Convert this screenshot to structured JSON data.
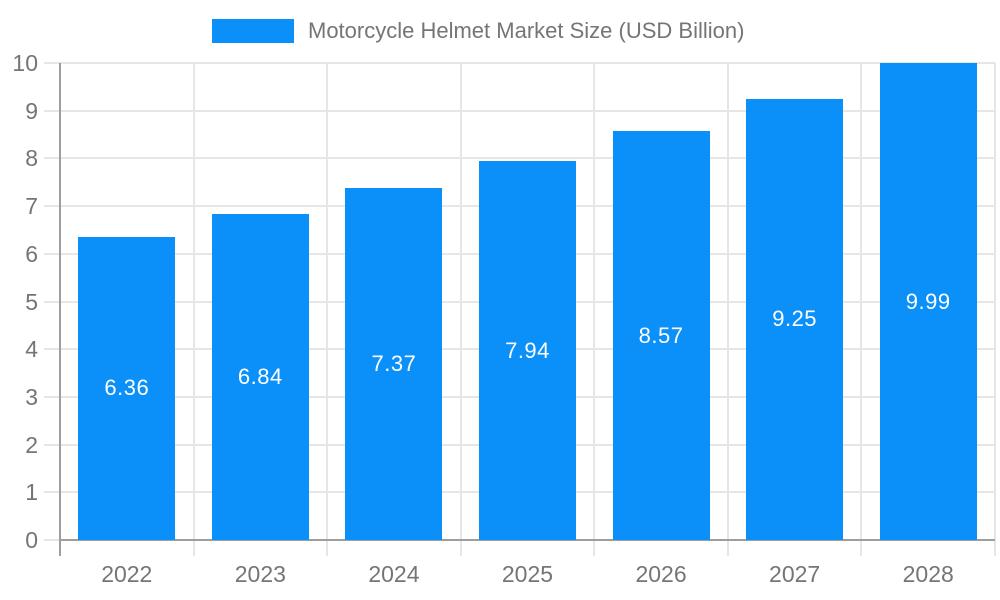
{
  "chart_data": {
    "type": "bar",
    "title": "Motorcycle Helmet Market Size (USD Billion)",
    "categories": [
      "2022",
      "2023",
      "2024",
      "2025",
      "2026",
      "2027",
      "2028"
    ],
    "values": [
      6.36,
      6.84,
      7.37,
      7.94,
      8.57,
      9.25,
      9.99
    ],
    "value_labels": [
      "6.36",
      "6.84",
      "7.37",
      "7.94",
      "8.57",
      "9.25",
      "9.99"
    ],
    "ytick_labels": [
      "0",
      "1",
      "2",
      "3",
      "4",
      "5",
      "6",
      "7",
      "8",
      "9",
      "10"
    ],
    "ylim": [
      0,
      10
    ],
    "ytick_step": 1,
    "xlabel": "",
    "ylabel": "",
    "grid": true,
    "legend_position": "top",
    "colors": {
      "bar": "#0a90f8",
      "value_label": "#ffffff",
      "axis_text": "#757575",
      "gridline": "#e6e6e6",
      "axis_line": "#9e9e9e",
      "background": "#ffffff"
    }
  }
}
